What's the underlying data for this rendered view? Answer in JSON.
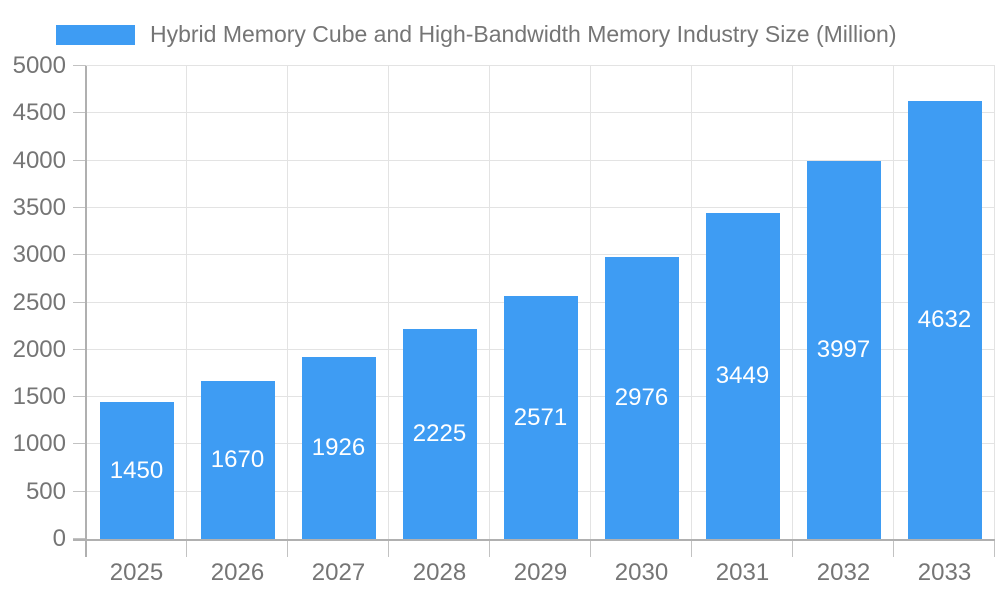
{
  "legend": {
    "label": "Hybrid Memory Cube and High-Bandwidth Memory Industry Size (Million)"
  },
  "chart_data": {
    "type": "bar",
    "title": "Hybrid Memory Cube and High-Bandwidth Memory Industry Size (Million)",
    "categories": [
      "2025",
      "2026",
      "2027",
      "2028",
      "2029",
      "2030",
      "2031",
      "2032",
      "2033"
    ],
    "series": [
      {
        "name": "Hybrid Memory Cube and High-Bandwidth Memory Industry Size (Million)",
        "values": [
          1450,
          1670,
          1926,
          2225,
          2571,
          2976,
          3449,
          3997,
          4632
        ]
      }
    ],
    "value_labels_shown": true,
    "xlabel": "",
    "ylabel": "",
    "ylim": [
      0,
      5000
    ],
    "ytick_step": 500,
    "yticks": [
      0,
      500,
      1000,
      1500,
      2000,
      2500,
      3000,
      3500,
      4000,
      4500,
      5000
    ],
    "grid": true,
    "legend_position": "top-left",
    "colors": {
      "bar": "#3E9CF3",
      "bar_value_text": "#FFFFFF",
      "axis_text": "#757575",
      "axis_line": "#B0B0B0",
      "gridline": "#E3E3E3",
      "tick": "#C2C2C2",
      "background": "#FFFFFF"
    }
  }
}
